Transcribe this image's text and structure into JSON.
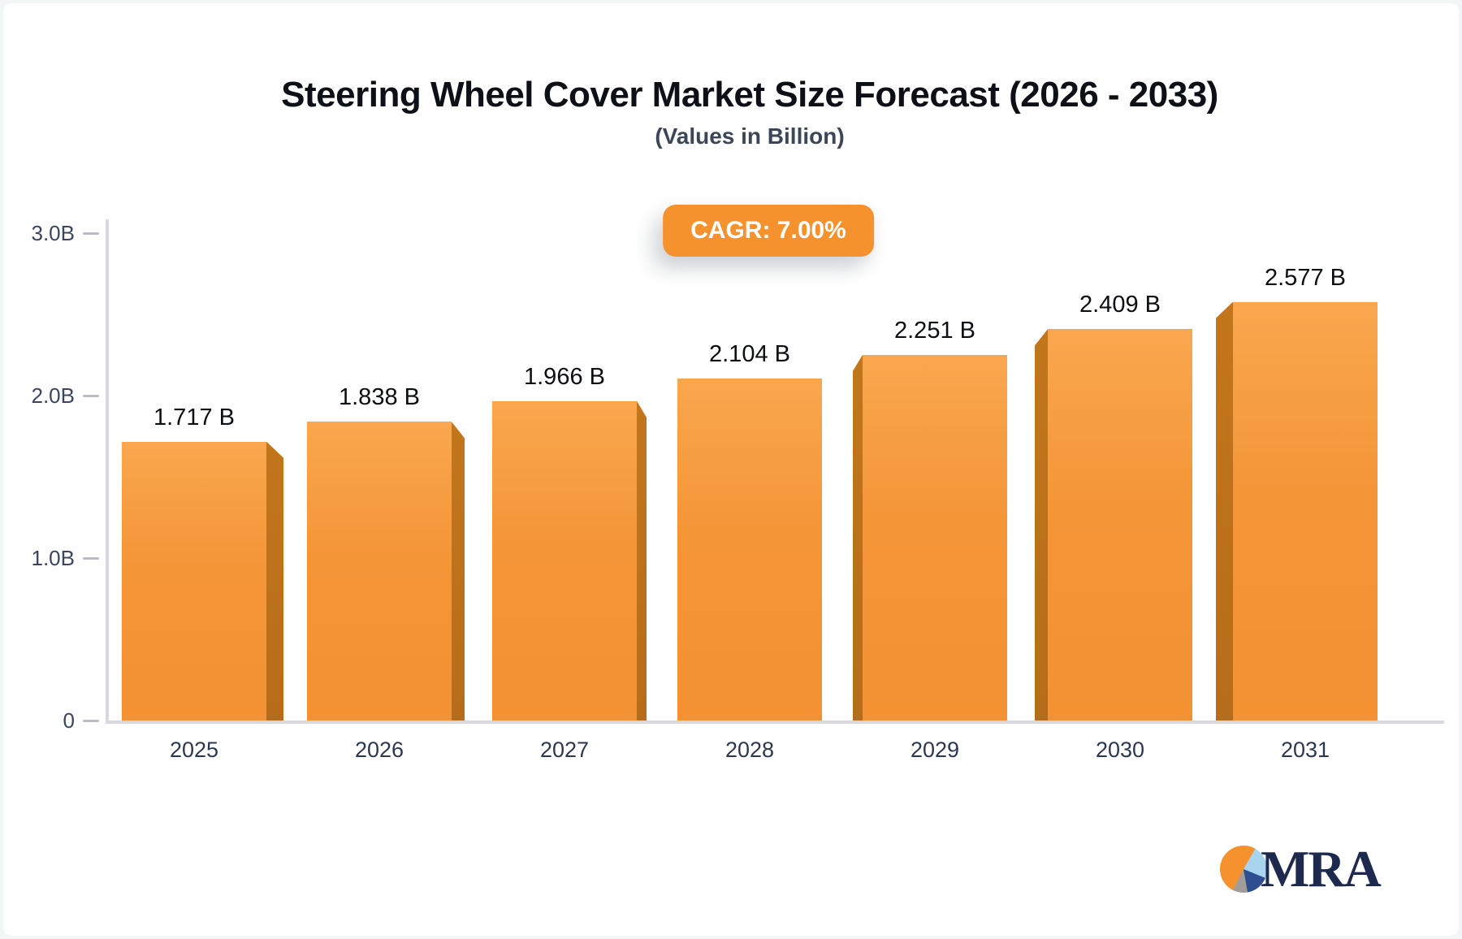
{
  "header": {
    "title": "Steering Wheel Cover Market Size Forecast (2026 - 2033)",
    "subtitle": "(Values in Billion)",
    "badge_label": "CAGR: 7.00%",
    "badge_color": "#f5922e"
  },
  "chart_data": {
    "type": "bar",
    "categories": [
      "2025",
      "2026",
      "2027",
      "2028",
      "2029",
      "2030",
      "2031"
    ],
    "values": [
      1.717,
      1.838,
      1.966,
      2.104,
      2.251,
      2.409,
      2.577
    ],
    "value_labels": [
      "1.717 B",
      "1.838 B",
      "1.966 B",
      "2.104 B",
      "2.251 B",
      "2.409 B",
      "2.577 B"
    ],
    "title": "Steering Wheel Cover Market Size Forecast (2026 - 2033)",
    "subtitle": "(Values in Billion)",
    "xlabel": "",
    "ylabel": "",
    "ylim": [
      0,
      3
    ],
    "ytick_values": [
      0,
      1,
      2,
      3
    ],
    "ytick_labels": [
      "0",
      "1.0B",
      "2.0B",
      "3.0B"
    ],
    "grid": "off",
    "legend": "none",
    "annotation": "CAGR: 7.00%",
    "bar_face_color_top": "#f9a74f",
    "bar_face_color_bottom": "#f39133",
    "bar_side_color": "#bb6f18",
    "axis_line_color": "#d7d9de",
    "tick_color": "#b7bcc6"
  },
  "logo": {
    "text": "MRA",
    "text_color": "#1d2a4e",
    "pie_colors": {
      "orange": "#f5922d",
      "light_blue": "#a8d4f0",
      "navy": "#2e4e8f",
      "gray": "#a29d99"
    }
  }
}
